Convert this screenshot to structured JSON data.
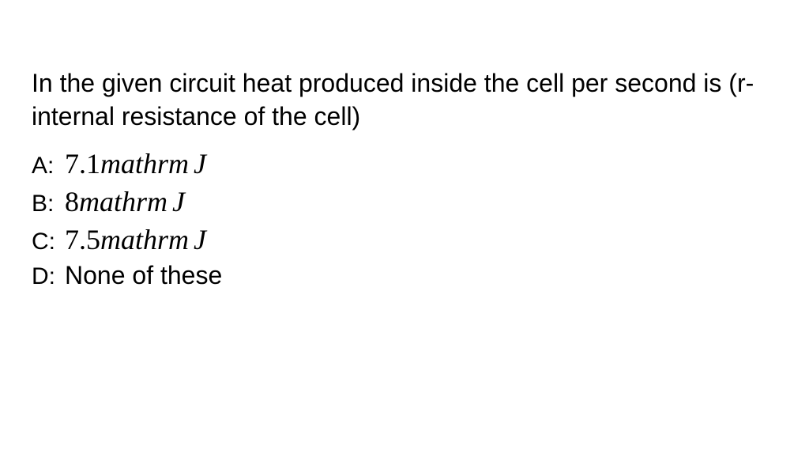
{
  "question": {
    "text": "In the given circuit heat produced inside the cell per second is (r-internal resistance of the cell)",
    "fontsize": 32,
    "color": "#000000"
  },
  "options": [
    {
      "letter": "A:",
      "number": "7.1",
      "mathrm": "mathrm",
      "unit": "J",
      "is_latex": true
    },
    {
      "letter": "B:",
      "number": "8",
      "mathrm": "mathrm",
      "unit": "J",
      "is_latex": true
    },
    {
      "letter": "C:",
      "number": "7.5",
      "mathrm": "mathrm",
      "unit": "J",
      "is_latex": true
    },
    {
      "letter": "D:",
      "text": "None of these",
      "is_latex": false
    }
  ],
  "styling": {
    "background_color": "#ffffff",
    "text_color": "#000000",
    "question_font": "Arial",
    "option_value_font": "Times New Roman",
    "question_fontsize": 32,
    "option_letter_fontsize": 30,
    "option_value_fontsize": 36,
    "option_none_fontsize": 32
  }
}
